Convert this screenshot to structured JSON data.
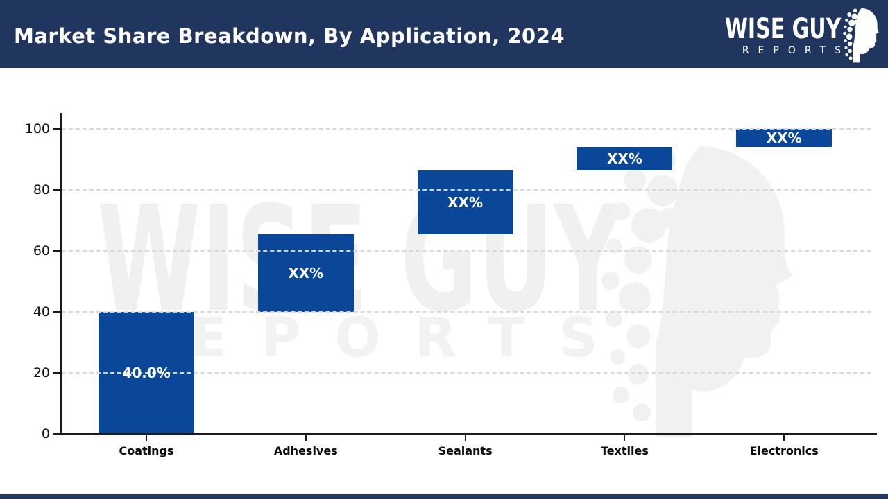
{
  "header": {
    "title": "Market Share Breakdown, By Application, 2024",
    "logo": {
      "name_line": "WISE GUY",
      "sub_line": "REPORTS",
      "sub_line_display": "REPORTS"
    }
  },
  "watermark": {
    "line1": "WISE GUY",
    "line2": "REPORTS"
  },
  "icons": {
    "logo_head": "dotted-head-profile-icon",
    "watermark_head": "dotted-head-profile-icon"
  },
  "colors": {
    "header_bg": "#21365f",
    "bar": "#0b4798",
    "bar_label": "#ffffff",
    "grid": "#d9d9d9",
    "axis": "#1a1a1a",
    "watermark": "#f0f0f0"
  },
  "chart_data": {
    "type": "bar",
    "subtype": "waterfall",
    "title": "Market Share Breakdown, By Application, 2024",
    "categories": [
      "Coatings",
      "Adhesives",
      "Sealants",
      "Textiles",
      "Electronics"
    ],
    "segments": [
      {
        "category": "Coatings",
        "start": 0,
        "end": 40,
        "value": 40.0,
        "label": "40.0%"
      },
      {
        "category": "Adhesives",
        "start": 40,
        "end": 65.5,
        "value": 25.5,
        "label": "XX%"
      },
      {
        "category": "Sealants",
        "start": 65.5,
        "end": 86.3,
        "value": 20.8,
        "label": "XX%"
      },
      {
        "category": "Textiles",
        "start": 86.3,
        "end": 94.1,
        "value": 7.8,
        "label": "XX%"
      },
      {
        "category": "Electronics",
        "start": 94.1,
        "end": 100,
        "value": 5.9,
        "label": "XX%"
      }
    ],
    "yticks": [
      0,
      20,
      40,
      60,
      80,
      100
    ],
    "ylim": [
      0,
      104.5
    ],
    "xlabel": "",
    "ylabel": "",
    "grid": "horizontal dashed, drawn above bars",
    "legend": "none"
  }
}
